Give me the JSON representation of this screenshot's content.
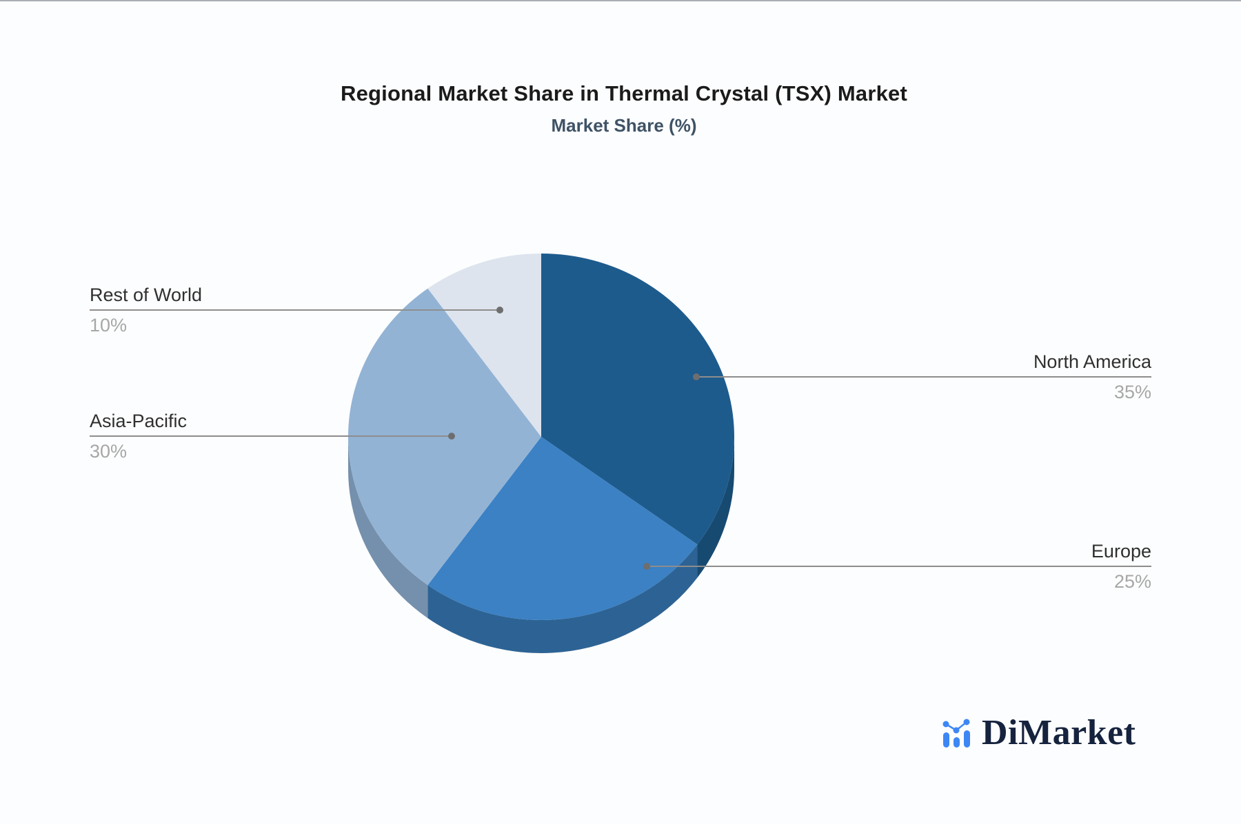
{
  "header": {
    "title": "Regional Market Share in Thermal Crystal (TSX) Market",
    "subtitle": "Market Share (%)"
  },
  "chart_data": {
    "type": "pie",
    "title": "Regional Market Share in Thermal Crystal (TSX) Market",
    "subtitle": "Market Share (%)",
    "unit": "%",
    "style": "3d",
    "start_angle_deg": 0,
    "direction": "clockwise",
    "legend_position": "callout-labels",
    "slices": [
      {
        "label": "North America",
        "value": 35,
        "display_value": "35%",
        "color": "#1e5b8d",
        "side_color": "#174a71"
      },
      {
        "label": "Europe",
        "value": 25,
        "display_value": "25%",
        "color": "#3b81c4",
        "side_color": "#2d6394"
      },
      {
        "label": "Asia-Pacific",
        "value": 30,
        "display_value": "30%",
        "color": "#93b3d5",
        "side_color": "#7590ac"
      },
      {
        "label": "Rest of World",
        "value": 10,
        "display_value": "10%",
        "color": "#dde4ee",
        "side_color": "#b6c2d1"
      }
    ]
  },
  "branding": {
    "logo_text": "DiMarket",
    "logo_icon": "bar-chart-icon",
    "logo_text_color": "#16233e",
    "logo_icon_color": "#3d87f5"
  },
  "colors": {
    "title_text": "#1b1b1b",
    "subtitle_text": "#3f5265",
    "label_text": "#2f2f2f",
    "value_text": "#a7a7a7",
    "leader_line": "#8d8d8d",
    "leader_dot": "#6e6e6e",
    "background": "#fcfdfe"
  }
}
